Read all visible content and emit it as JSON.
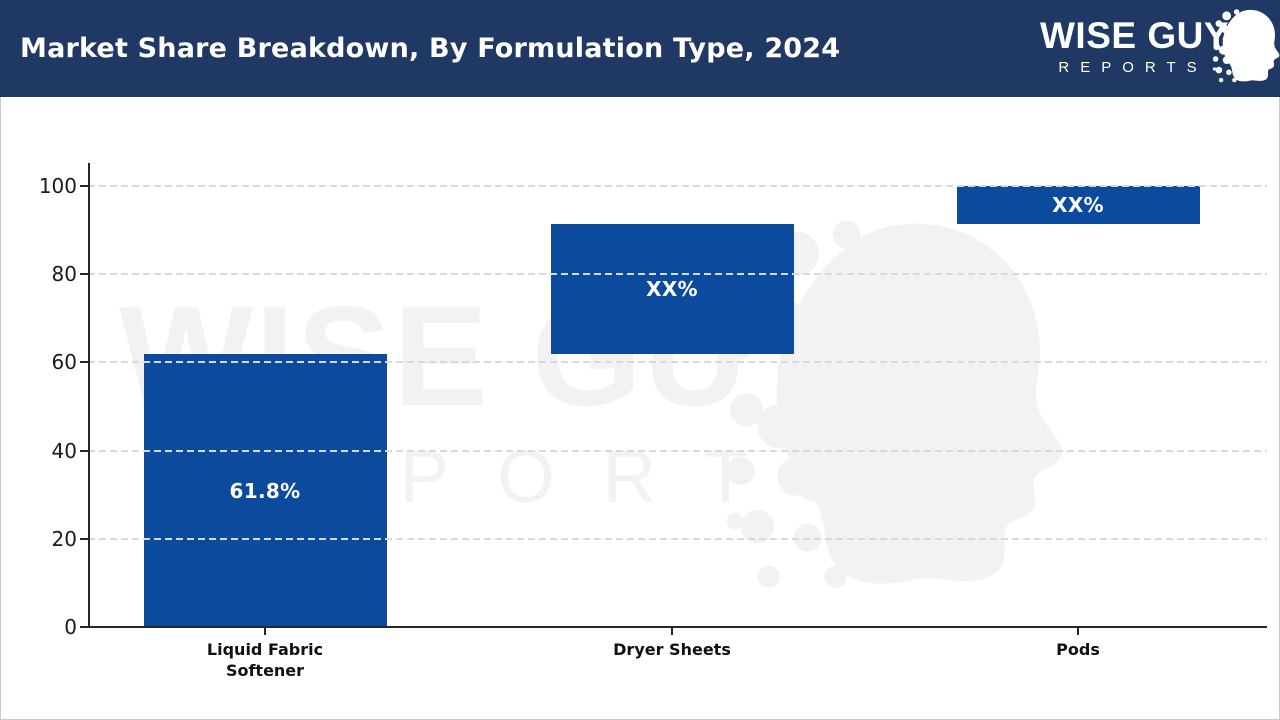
{
  "header": {
    "title": "Market Share Breakdown, By Formulation Type, 2024",
    "logo": {
      "wordmark": "WISE GUY",
      "subtext": "REPORTS"
    }
  },
  "watermark": {
    "wordmark": "WISE GUY",
    "subtext": "REPORTS"
  },
  "colors": {
    "header_bg": "#1f3864",
    "bar_blue": "#0b4a9d",
    "gridline": "#d9d9d9",
    "axis": "#262626",
    "watermark_gray": "#f2f2f3"
  },
  "chart_data": {
    "type": "bar",
    "subtype": "waterfall",
    "title": "Market Share Breakdown, By Formulation Type, 2024",
    "categories": [
      "Liquid Fabric Softener",
      "Dryer Sheets",
      "Pods"
    ],
    "series": [
      {
        "name": "Market share (%)",
        "segments": [
          {
            "category": "Liquid Fabric Softener",
            "start": 0,
            "end": 61.8,
            "bar_label": "61.8%"
          },
          {
            "category": "Dryer Sheets",
            "start": 61.8,
            "end": 91.4,
            "bar_label": "XX%"
          },
          {
            "category": "Pods",
            "start": 91.4,
            "end": 100,
            "bar_label": "XX%"
          }
        ]
      }
    ],
    "xlabel": "",
    "ylabel": "",
    "ylim": [
      0,
      100
    ],
    "yticks": [
      0,
      20,
      40,
      60,
      80,
      100
    ],
    "grid": "horizontal-dashed",
    "legend": "none",
    "bar_color": "#0b4a9d",
    "bar_label_color": "#ffffff"
  }
}
